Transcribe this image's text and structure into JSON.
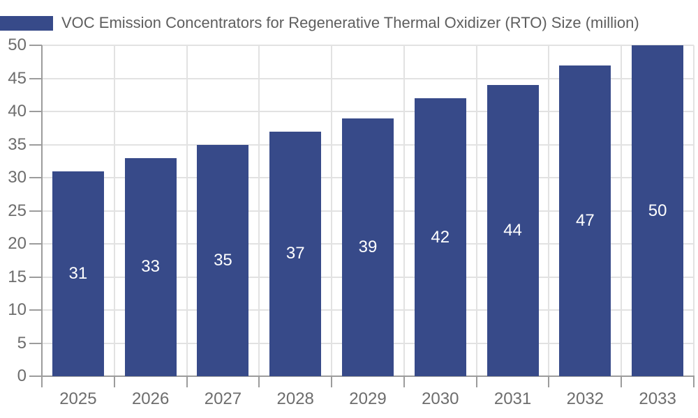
{
  "chart_data": {
    "type": "bar",
    "title": "VOC Emission Concentrators for Regenerative Thermal Oxidizer (RTO) Size (million)",
    "categories": [
      "2025",
      "2026",
      "2027",
      "2028",
      "2029",
      "2030",
      "2031",
      "2032",
      "2033"
    ],
    "values": [
      31,
      33,
      35,
      37,
      39,
      42,
      44,
      47,
      50
    ],
    "xlabel": "",
    "ylabel": "",
    "ylim": [
      0,
      50
    ],
    "y_ticks": [
      0,
      5,
      10,
      15,
      20,
      25,
      30,
      35,
      40,
      45,
      50
    ],
    "grid": true,
    "legend_position": "top-left",
    "value_label_position": "inside-center",
    "colors": {
      "bar": "#374A89",
      "bar_value_label": "#FFFFFF",
      "grid_line": "#E2E2E2",
      "axis_line": "#9C9C9C",
      "axis_tick_label": "#6D6D6D",
      "legend_text": "#5E5E5E",
      "background": "#FFFFFF"
    }
  }
}
